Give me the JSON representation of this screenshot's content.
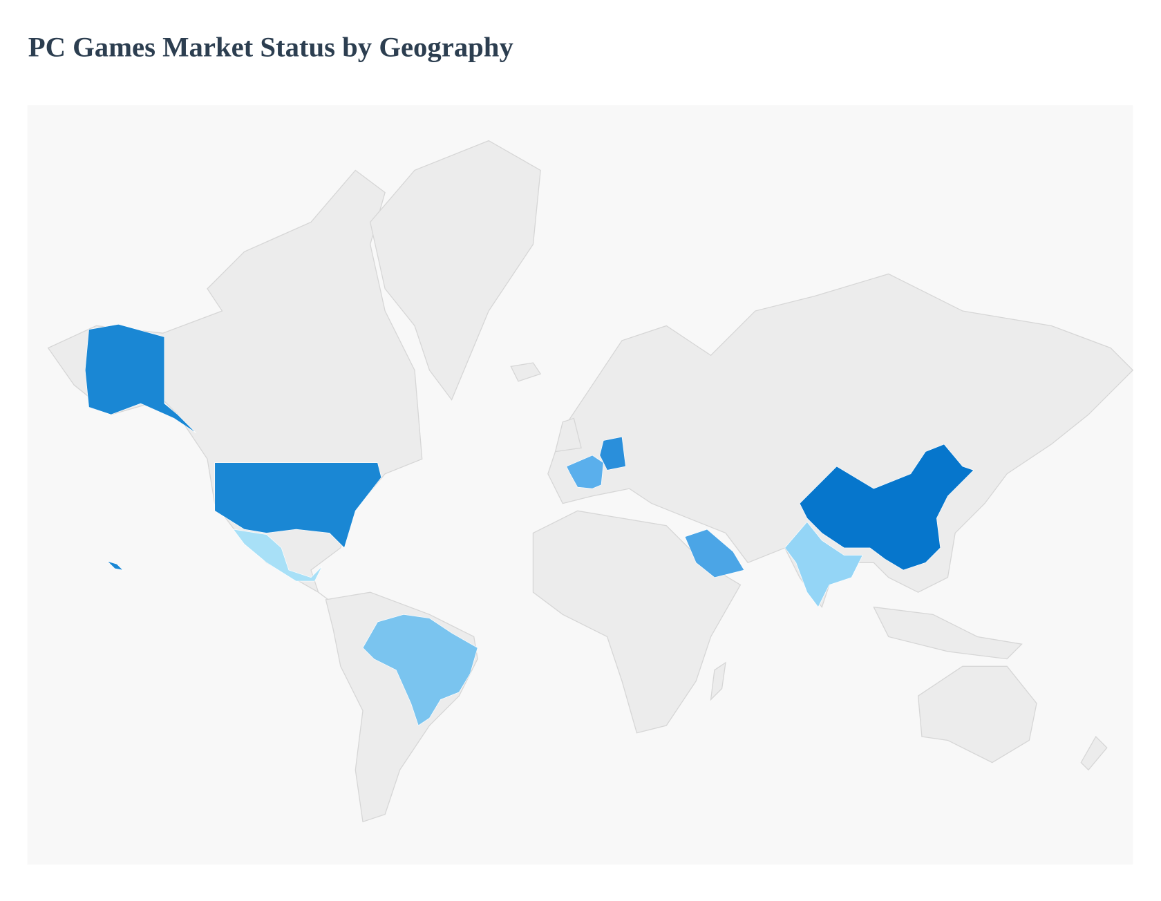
{
  "title": "PC Games Market Status by Geography",
  "map": {
    "background": "#f8f8f8",
    "land": "#ececec",
    "border": "#d6d6d6",
    "highlight_colors": [
      "#1a87d4",
      "#a8e0f7",
      "#7ac4ef",
      "#5aafec",
      "#2a8fdb",
      "#4ba5e6",
      "#94d5f6",
      "#0676cc"
    ]
  }
}
